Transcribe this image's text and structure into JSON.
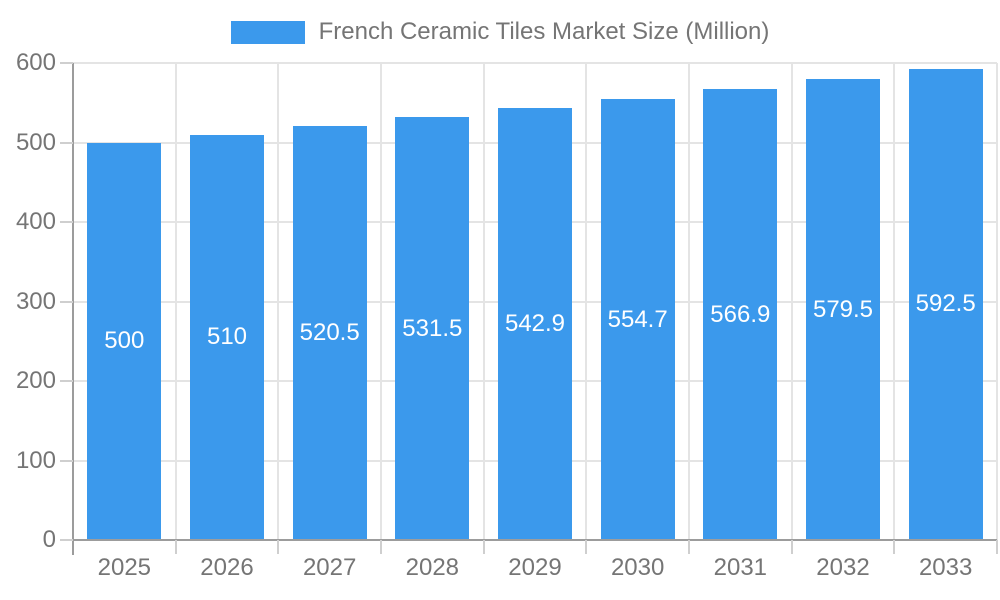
{
  "chart_data": {
    "type": "bar",
    "title": "French Ceramic Tiles Market Size (Million)",
    "categories": [
      "2025",
      "2026",
      "2027",
      "2028",
      "2029",
      "2030",
      "2031",
      "2032",
      "2033"
    ],
    "values": [
      500,
      510,
      520.5,
      531.5,
      542.9,
      554.7,
      566.9,
      579.5,
      592.5
    ],
    "bar_labels": [
      "500",
      "510",
      "520.5",
      "531.5",
      "542.9",
      "554.7",
      "566.9",
      "579.5",
      "592.5"
    ],
    "xlabel": "",
    "ylabel": "",
    "ylim": [
      0,
      600
    ],
    "ytick_step": 100,
    "ytick_labels": [
      "0",
      "100",
      "200",
      "300",
      "400",
      "500",
      "600"
    ],
    "grid": true,
    "legend_position": "top-center",
    "bar_label_position": "inside-middle",
    "colors": {
      "bar": "#3B99EC",
      "bar_label": "#FFFFFF",
      "axis_text": "#757575",
      "legend_text": "#757575",
      "axis_line": "#9C9C9C",
      "gridline": "#E4E4E4",
      "tick": "#CFCFCF",
      "background": "#FFFFFF"
    }
  }
}
